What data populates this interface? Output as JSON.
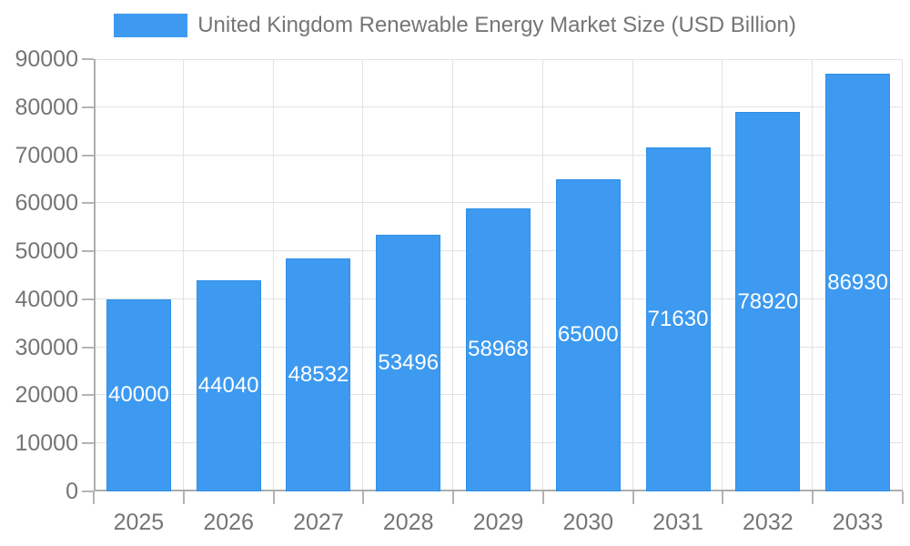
{
  "chart_data": {
    "type": "bar",
    "title": "United Kingdom Renewable Energy Market Size (USD Billion)",
    "categories": [
      "2025",
      "2026",
      "2027",
      "2028",
      "2029",
      "2030",
      "2031",
      "2032",
      "2033"
    ],
    "values": [
      40000,
      44040,
      48532,
      53496,
      58968,
      65000,
      71630,
      78920,
      86930
    ],
    "series": [
      {
        "name": "United Kingdom Renewable Energy Market Size (USD Billion)",
        "values": [
          40000,
          44040,
          48532,
          53496,
          58968,
          65000,
          71630,
          78920,
          86930
        ]
      }
    ],
    "xlabel": "",
    "ylabel": "",
    "ylim": [
      0,
      90000
    ],
    "ytick_step": 10000,
    "yticks": [
      0,
      10000,
      20000,
      30000,
      40000,
      50000,
      60000,
      70000,
      80000,
      90000
    ],
    "grid": true,
    "legend_position": "top",
    "value_labels_shown": true,
    "colors": {
      "bar": "#3D9AF0",
      "bar_border": "#2F8FE8",
      "grid": "#E3E3E3",
      "axis": "#ADADAD",
      "tick": "#B4B4B4",
      "text": "#757575",
      "value_label": "#FFFFFF",
      "background": "#FFFFFF"
    }
  }
}
